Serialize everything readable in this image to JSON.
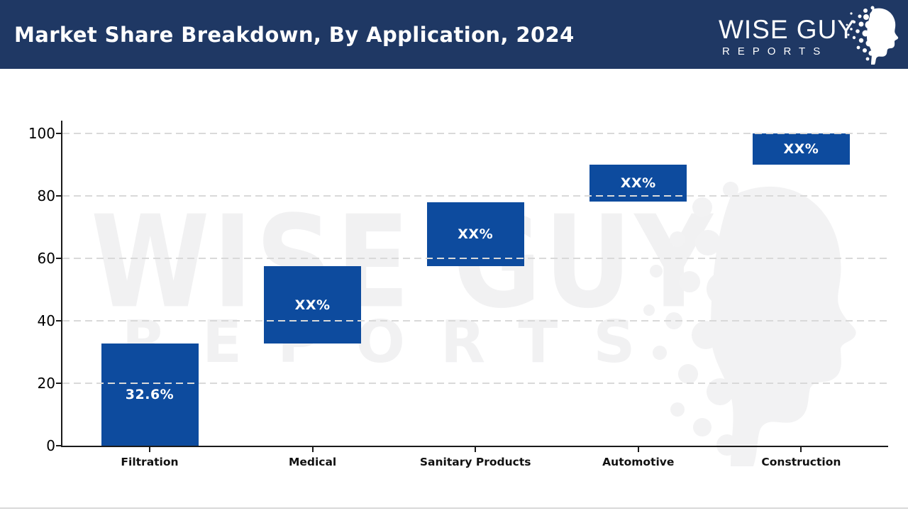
{
  "header": {
    "title": "Market Share Breakdown, By Application, 2024",
    "background_color": "#1f3864"
  },
  "logo": {
    "line1": "WISE GUY",
    "line2": "REPORTS",
    "icon": "dotted-head-profile-icon"
  },
  "watermark": {
    "line1": "WISE GUY",
    "line2": "REPORTS"
  },
  "chart_data": {
    "type": "bar",
    "subtype": "floating-waterfall",
    "title": "Market Share Breakdown, By Application, 2024",
    "xlabel": "",
    "ylabel": "",
    "categories": [
      "Filtration",
      "Medical",
      "Sanitary Products",
      "Automotive",
      "Construction"
    ],
    "bars": [
      {
        "category": "Filtration",
        "start": 0,
        "end": 32.6,
        "label": "32.6%"
      },
      {
        "category": "Medical",
        "start": 32.6,
        "end": 57.5,
        "label": "XX%"
      },
      {
        "category": "Sanitary Products",
        "start": 57.5,
        "end": 78,
        "label": "XX%"
      },
      {
        "category": "Automotive",
        "start": 78,
        "end": 90,
        "label": "XX%"
      },
      {
        "category": "Construction",
        "start": 90,
        "end": 100,
        "label": "XX%"
      }
    ],
    "yticks": [
      0,
      20,
      40,
      60,
      80,
      100
    ],
    "ylim": [
      0,
      104
    ],
    "grid": "horizontal-dashed, drawn above bars",
    "legend": "none",
    "bar_color": "#0d4b9e",
    "bar_label_color": "#ffffff",
    "gridline_color": "#d9d9d9",
    "axis_color": "#1a1a1a"
  }
}
